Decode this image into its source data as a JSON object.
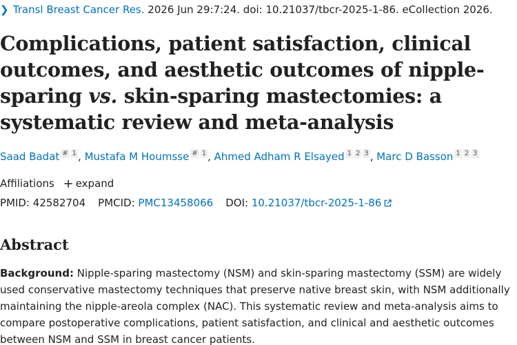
{
  "citation": {
    "journal": "Transl Breast Cancer Res.",
    "details": " 2026 Jun 29:7:24. doi: 10.21037/tbcr-2025-1-86. eCollection 2026."
  },
  "title": {
    "part1": "Complications, patient satisfaction, clinical outcomes, and aesthetic outcomes of nipple-sparing ",
    "italic": "vs.",
    "part2": " skin-sparing mastectomies: a systematic review and meta-analysis"
  },
  "authors": [
    {
      "name": "Saad Badat",
      "sups": [
        "#",
        "1"
      ]
    },
    {
      "name": "Mustafa M Houmsse",
      "sups": [
        "#",
        "1"
      ]
    },
    {
      "name": "Ahmed Adham R Elsayed",
      "sups": [
        "1",
        "2",
        "3"
      ]
    },
    {
      "name": "Marc D Basson",
      "sups": [
        "1",
        "2",
        "3"
      ]
    }
  ],
  "affiliations": {
    "label": "Affiliations",
    "expand_label": "expand"
  },
  "ids": {
    "pmid_label": "PMID: ",
    "pmid_value": "42582704",
    "pmcid_label": "PMCID: ",
    "pmcid_value": "PMC13458066",
    "doi_label": "DOI: ",
    "doi_value": "10.21037/tbcr-2025-1-86"
  },
  "abstract": {
    "heading": "Abstract",
    "background_label": "Background:",
    "background_text": " Nipple-sparing mastectomy (NSM) and skin-sparing mastectomy (SSM) are widely used conservative mastectomy techniques that preserve native breast skin, with NSM additionally maintaining the nipple-areola complex (NAC). This systematic review and meta-analysis aims to compare postoperative complications, patient satisfaction, and clinical and aesthetic outcomes between NSM and SSM in breast cancer patients."
  },
  "colors": {
    "link": "#0071bc",
    "text": "#212121"
  },
  "icons": {
    "citation_chevron": "chevron-right-icon",
    "expand": "plus-icon",
    "doi_link": "external-link-icon"
  }
}
